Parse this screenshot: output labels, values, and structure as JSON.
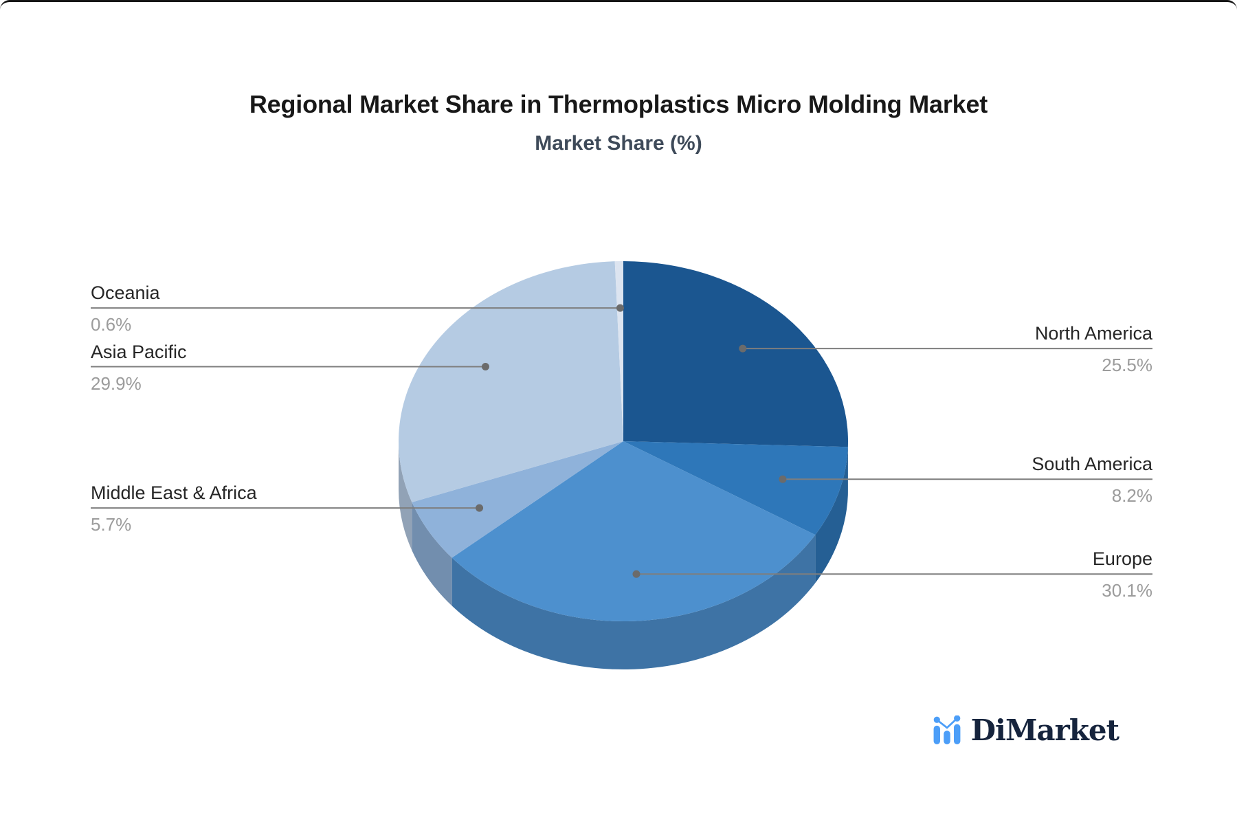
{
  "header": {
    "title": "Regional Market Share in Thermoplastics Micro Molding Market",
    "subtitle": "Market Share (%)"
  },
  "chart_data": {
    "type": "pie",
    "title": "Regional Market Share in Thermoplastics Micro Molding Market",
    "subtitle": "Market Share (%)",
    "unit": "%",
    "effect": "3d",
    "start_angle": "12-oclock",
    "direction": "clockwise",
    "legend_position": "callout-labels",
    "slices": [
      {
        "label": "North America",
        "value": 25.5,
        "display": "25.5%",
        "color": "#1B5690",
        "callout_side": "right"
      },
      {
        "label": "South America",
        "value": 8.2,
        "display": "8.2%",
        "color": "#2E77B9",
        "callout_side": "right"
      },
      {
        "label": "Europe",
        "value": 30.1,
        "display": "30.1%",
        "color": "#4D90CE",
        "callout_side": "right"
      },
      {
        "label": "Middle East & Africa",
        "value": 5.7,
        "display": "5.7%",
        "color": "#8FB2DA",
        "callout_side": "left"
      },
      {
        "label": "Asia Pacific",
        "value": 29.9,
        "display": "29.9%",
        "color": "#B5CBE3",
        "callout_side": "left"
      },
      {
        "label": "Oceania",
        "value": 0.6,
        "display": "0.6%",
        "color": "#DCE4F0",
        "callout_side": "left"
      }
    ],
    "label_text_color": "#262626",
    "value_text_color": "#9C9C9C",
    "leader_line_color": "#7E7E7E",
    "leader_dot_color": "#6B6B6B"
  },
  "logo": {
    "text": "DiMarket",
    "icon": "bar-chart-trend-icon",
    "icon_color": "#4C9EF8",
    "text_color": "#16243D"
  }
}
